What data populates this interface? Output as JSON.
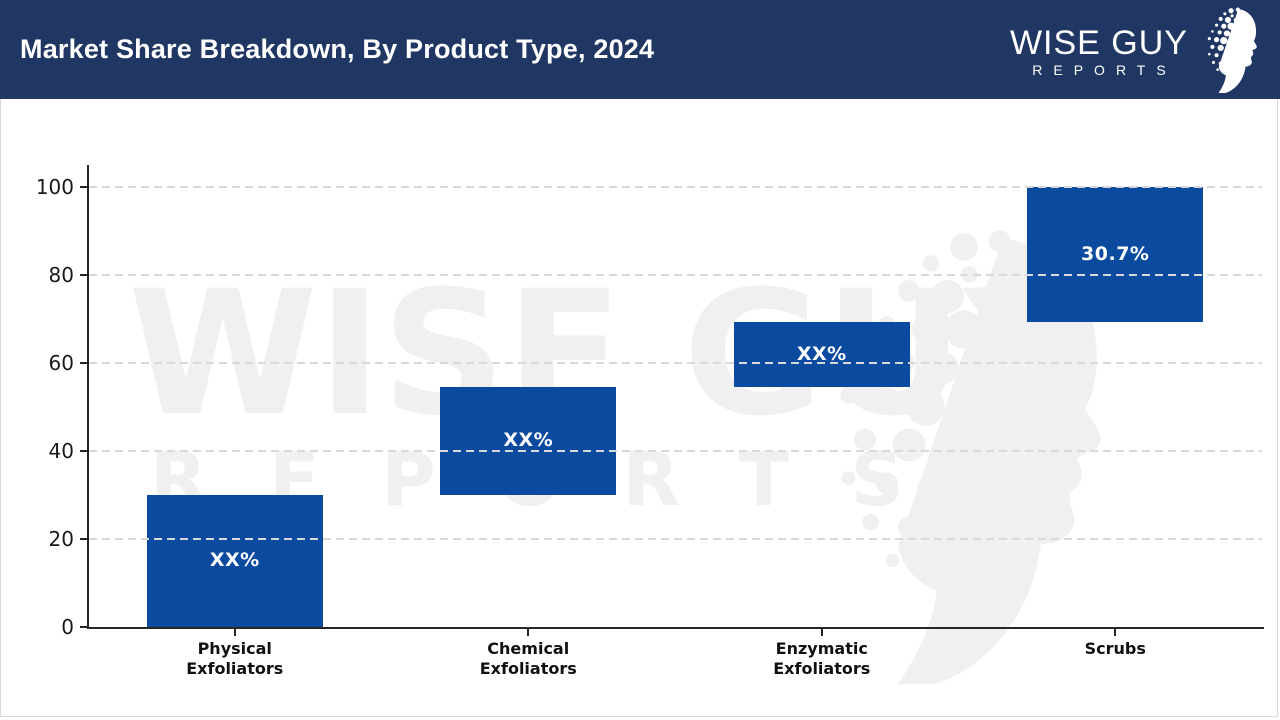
{
  "header": {
    "title": "Market Share Breakdown, By Product Type, 2024",
    "logo": {
      "line1": "WISE GUY",
      "line2": "REPORTS"
    }
  },
  "watermark": {
    "line1": "WISE GUY",
    "line2": "REPORTS"
  },
  "colors": {
    "header_bg": "#203764",
    "bar": "#0a4a9f",
    "grid": "#d9d9d9",
    "axis": "#262626",
    "watermark": "#f0f0f2",
    "bar_label_text": "#ffffff",
    "tick_text": "#1a1a1a"
  },
  "chart_data": {
    "type": "bar",
    "subtype": "stepped-waterfall",
    "title": "Market Share Breakdown, By Product Type, 2024",
    "categories": [
      "Physical Exfoliators",
      "Chemical Exfoliators",
      "Enzymatic Exfoliators",
      "Scrubs"
    ],
    "category_lines": [
      [
        "Physical",
        "Exfoliators"
      ],
      [
        "Chemical",
        "Exfoliators"
      ],
      [
        "Enzymatic",
        "Exfoliators"
      ],
      [
        "Scrubs"
      ]
    ],
    "bar_starts": [
      0,
      30.0,
      54.5,
      69.3
    ],
    "bar_ends": [
      30.0,
      54.5,
      69.3,
      100.0
    ],
    "bar_labels": [
      "XX%",
      "XX%",
      "XX%",
      "30.7%"
    ],
    "ylabel": "",
    "xlabel": "",
    "ylim": [
      0,
      105
    ],
    "yticks": [
      0,
      20,
      40,
      60,
      80,
      100
    ],
    "grid": "horizontal-dashed-above-bars",
    "legend": "none",
    "bar_color": "#0a4a9f"
  }
}
